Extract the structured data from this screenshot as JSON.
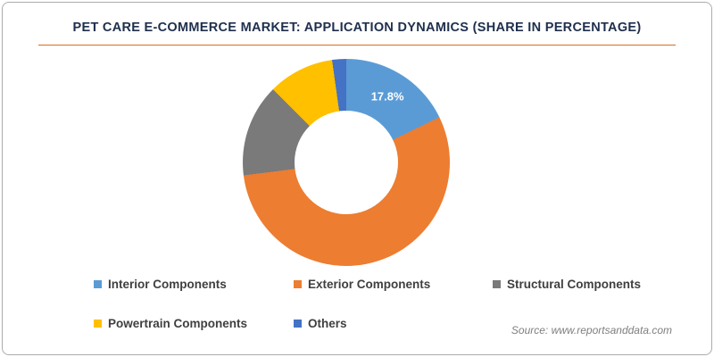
{
  "title": "PET CARE E-COMMERCE MARKET: APPLICATION DYNAMICS (SHARE IN PERCENTAGE)",
  "source": "Source: www.reportsanddata.com",
  "chart_data": {
    "type": "pie",
    "donut": true,
    "title": "PET CARE E-COMMERCE MARKET: APPLICATION DYNAMICS (SHARE IN PERCENTAGE)",
    "categories": [
      "Interior Components",
      "Exterior Components",
      "Structural Components",
      "Powertrain Components",
      "Others"
    ],
    "values": [
      17.8,
      55.2,
      14.5,
      10.3,
      2.2
    ],
    "colors": [
      "#5b9bd5",
      "#ed7d31",
      "#7a7a7a",
      "#ffc000",
      "#4472c4"
    ],
    "data_labels": [
      "17.8%",
      "",
      "",
      "",
      ""
    ],
    "start_angle_deg": 0,
    "direction": "clockwise",
    "hole_ratio": 0.5,
    "legend_position": "bottom"
  }
}
